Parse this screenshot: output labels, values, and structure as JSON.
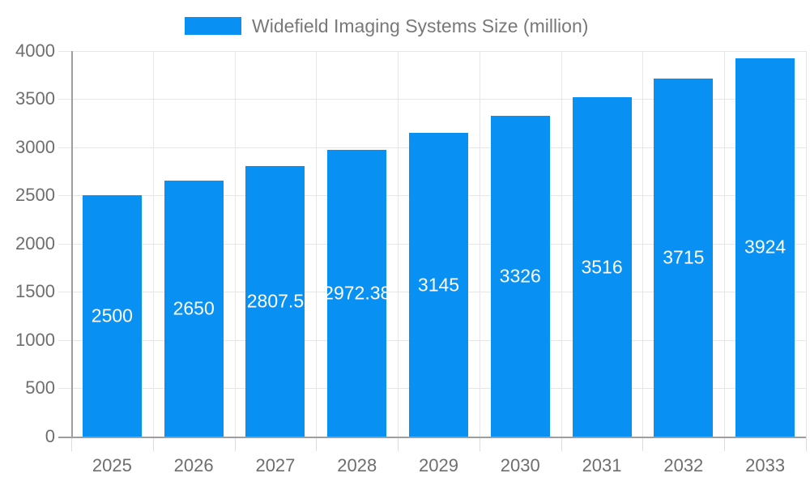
{
  "chart_data": {
    "type": "bar",
    "title": "Widefield Imaging Systems Size (million)",
    "categories": [
      "2025",
      "2026",
      "2027",
      "2028",
      "2029",
      "2030",
      "2031",
      "2032",
      "2033"
    ],
    "values": [
      2500,
      2650,
      2807.5,
      2972.38,
      3145,
      3326,
      3516,
      3715,
      3924
    ],
    "value_labels": [
      "2500",
      "2650",
      "2807.5",
      "2972.38",
      "3145",
      "3326",
      "3516",
      "3715",
      "3924"
    ],
    "xlabel": "",
    "ylabel": "",
    "ylim": [
      0,
      4000
    ],
    "ytick_step": 500,
    "y_tick_labels": [
      "0",
      "500",
      "1000",
      "1500",
      "2000",
      "2500",
      "3000",
      "3500",
      "4000"
    ],
    "grid": true,
    "legend_position": "top",
    "colors": {
      "bar": "#0890f3",
      "grid": "#e6e6e6",
      "tick": "#dcdcdc",
      "axis": "#9e9e9e",
      "axis_label": "#6e6e6e",
      "legend_text": "#787878",
      "value_label": "#ffffff",
      "background": "#ffffff"
    }
  }
}
